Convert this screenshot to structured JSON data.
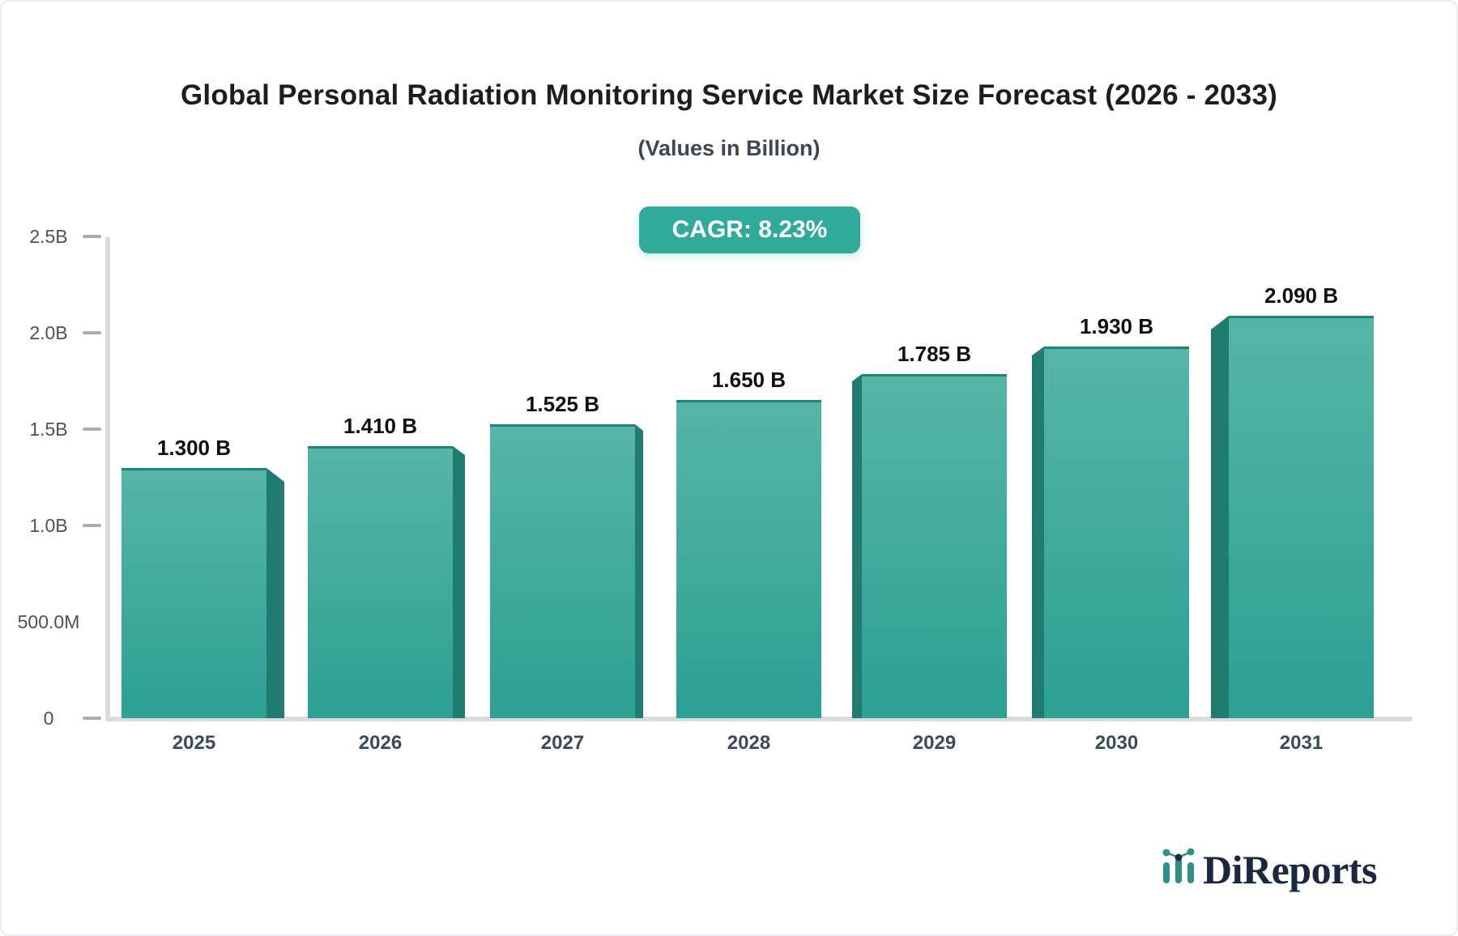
{
  "header": {
    "title": "Global Personal Radiation Monitoring Service Market Size Forecast (2026 - 2033)",
    "subtitle": "(Values in Billion)",
    "cagr_badge": "CAGR: 8.23%"
  },
  "chart_data": {
    "type": "bar",
    "title": "Global Personal Radiation Monitoring Service Market Size Forecast (2026 - 2033)",
    "subtitle": "(Values in Billion)",
    "xlabel": "",
    "ylabel": "",
    "unit": "Billion USD",
    "categories": [
      "2025",
      "2026",
      "2027",
      "2028",
      "2029",
      "2030",
      "2031"
    ],
    "values": [
      1.3,
      1.41,
      1.525,
      1.65,
      1.785,
      1.93,
      2.09
    ],
    "bar_labels": [
      "1.300 B",
      "1.410 B",
      "1.525 B",
      "1.650 B",
      "1.785 B",
      "1.930 B",
      "2.090 B"
    ],
    "cagr": "8.23%",
    "ylim": [
      0,
      2.5
    ],
    "grid": false,
    "legend": "none",
    "y_ticks": [
      {
        "label": "2.5B",
        "value": 2.5,
        "has_tick": true
      },
      {
        "label": "2.0B",
        "value": 2.0,
        "has_tick": true
      },
      {
        "label": "1.5B",
        "value": 1.5,
        "has_tick": true
      },
      {
        "label": "1.0B",
        "value": 1.0,
        "has_tick": true
      },
      {
        "label": "500.0M",
        "value": 0.5,
        "has_tick": false
      },
      {
        "label": "0",
        "value": 0.0,
        "has_tick": true
      }
    ]
  },
  "logo": {
    "text": "DiReports"
  },
  "colors": {
    "bar_top": "#56b5a7",
    "bar_bottom": "#2ba093",
    "bar_side": "#1f7c6f",
    "bar_top_edge": "#1b8577",
    "badge_bg": "#2faa9b",
    "badge_text": "#ffffff",
    "axis": "#d9dbdf",
    "tick": "#a8aeb9",
    "logo_teal": "#2f9186",
    "logo_navy": "#1a2740"
  }
}
